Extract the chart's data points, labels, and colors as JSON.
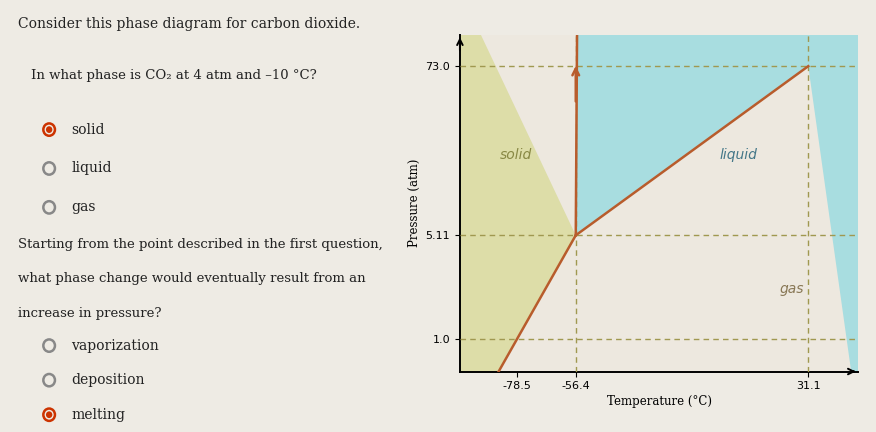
{
  "title_text": "Consider this phase diagram for carbon dioxide.",
  "q1_text": "In what phase is CO₂ at 4 atm and –10 °C?",
  "q1_options": [
    "solid",
    "liquid",
    "gas"
  ],
  "q1_selected": 0,
  "q2_line1": "Starting from the point described in the first question,",
  "q2_line2": "what phase change would eventually result from an",
  "q2_line3": "increase in pressure?",
  "q2_options": [
    "vaporization",
    "deposition",
    "melting"
  ],
  "q2_selected": 2,
  "phase_labels": [
    "solid",
    "liquid",
    "gas"
  ],
  "solid_color": "#dddda8",
  "liquid_color": "#a8dde0",
  "gas_color": "#ede8df",
  "border_color": "#b85c2c",
  "dashed_color": "#a09850",
  "ylabel": "Pressure (atm)",
  "xlabel": "Temperature (°C)",
  "ytick_vals": [
    1.0,
    5.11,
    73.0
  ],
  "ytick_labels": [
    "1.0",
    "5.11",
    "73.0"
  ],
  "xtick_vals": [
    -78.5,
    -56.4,
    31.1
  ],
  "xtick_labels": [
    "-78.5",
    "-56.4",
    "31.1"
  ],
  "triple_point_T": -56.4,
  "triple_point_P": 5.11,
  "critical_point_T": 31.1,
  "critical_point_P": 73.0,
  "sublimation_T_start": -78.5,
  "sublimation_P_start": 1.0,
  "xmin": -100,
  "xmax": 50,
  "pmin": 0.6,
  "pmax": 120,
  "bg_color": "#eeebe4",
  "radio_fill_color": "#cc3300",
  "radio_empty_color": "#888888",
  "text_color": "#222222",
  "solid_label_color": "#888844",
  "liquid_label_color": "#447788",
  "gas_label_color": "#887755"
}
